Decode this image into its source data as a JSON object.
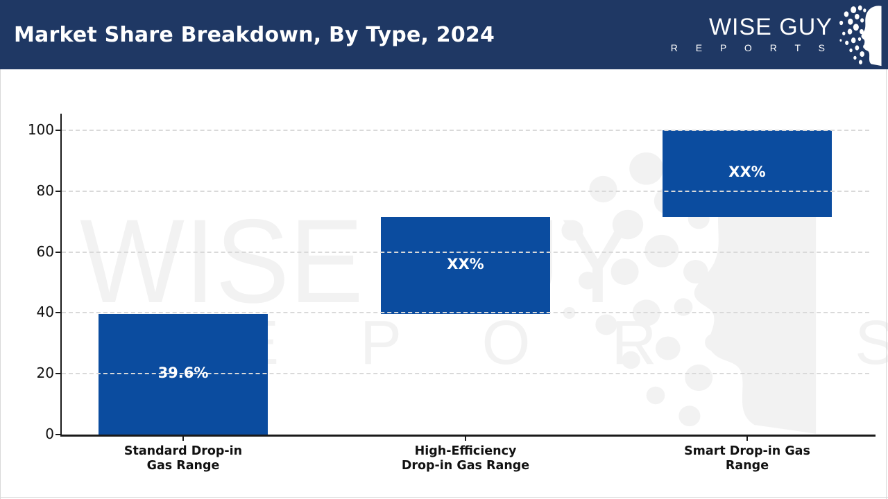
{
  "header": {
    "title": "Market Share Breakdown, By Type, 2024",
    "logo": {
      "brand_line1": "WISE GUY",
      "brand_line2": "R E P O R T S"
    }
  },
  "watermark": {
    "line1": "WISE GUY",
    "line2": "R E P O R T S"
  },
  "chart_data": {
    "type": "bar",
    "subtype": "floating-cumulative-segments",
    "title": "Market Share Breakdown, By Type, 2024",
    "xlabel": "",
    "ylabel": "",
    "categories": [
      "Standard Drop-in Gas Range",
      "High-Efficiency Drop-in Gas Range",
      "Smart Drop-in Gas Range"
    ],
    "category_labels": [
      {
        "line1": "Standard Drop-in",
        "line2": "Gas Range"
      },
      {
        "line1": "High-Efficiency",
        "line2": "Drop-in Gas Range"
      },
      {
        "line1": "Smart Drop-in Gas",
        "line2": "Range"
      }
    ],
    "bars": [
      {
        "category": "Standard Drop-in Gas Range",
        "start": 0,
        "end": 39.6,
        "value_label": "39.6%"
      },
      {
        "category": "High-Efficiency Drop-in Gas Range",
        "start": 39.6,
        "end": 71.6,
        "value_label": "XX%"
      },
      {
        "category": "Smart Drop-in Gas Range",
        "start": 71.6,
        "end": 100,
        "value_label": "XX%"
      }
    ],
    "yticks": [
      0,
      20,
      40,
      60,
      80,
      100
    ],
    "ylim": [
      0,
      106
    ],
    "grid": {
      "visible": true,
      "style": "dashed",
      "color": "#d9d9d9",
      "axis": "y"
    },
    "legend": {
      "visible": false
    },
    "bar_color": "#0b4c9f",
    "value_label_color": "#ffffff"
  },
  "colors": {
    "header_bg": "#1f3864",
    "bar": "#0b4c9f",
    "gridline": "#d9d9d9",
    "axis": "#1a1a1a",
    "watermark": "#f2f2f2",
    "title_text": "#ffffff"
  }
}
